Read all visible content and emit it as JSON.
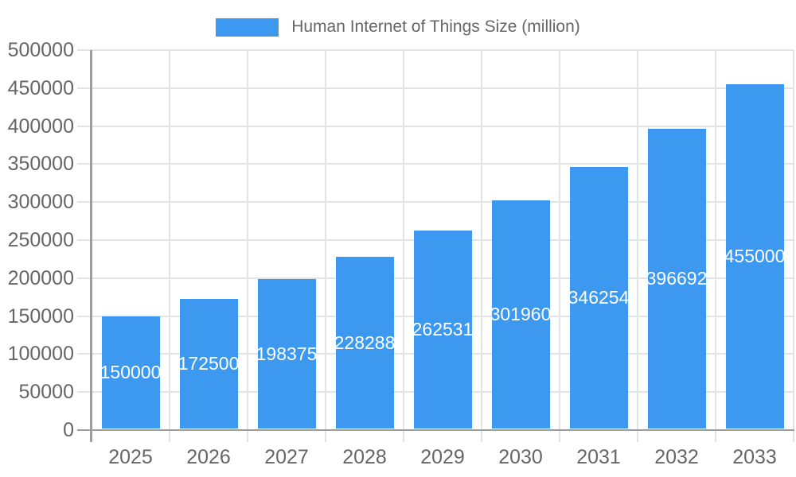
{
  "chart_data": {
    "type": "bar",
    "title": "Human Internet of Things Size (million)",
    "legend": {
      "position": "top-center",
      "entries": [
        "Human Internet of Things Size (million)"
      ]
    },
    "categories": [
      "2025",
      "2026",
      "2027",
      "2028",
      "2029",
      "2030",
      "2031",
      "2032",
      "2033"
    ],
    "series": [
      {
        "name": "Human Internet of Things Size (million)",
        "values": [
          150000,
          172500,
          198375,
          228288,
          262531,
          301960,
          346254,
          396692,
          455000
        ]
      }
    ],
    "bar_labels": [
      "150000",
      "172500",
      "198375",
      "228288",
      "262531",
      "301960",
      "346254",
      "396692",
      "455000"
    ],
    "xlabel": "",
    "ylabel": "",
    "ylim": [
      0,
      500000
    ],
    "ytick_step": 50000,
    "ytick_labels": [
      "0",
      "50000",
      "100000",
      "150000",
      "200000",
      "250000",
      "300000",
      "350000",
      "400000",
      "450000",
      "500000"
    ],
    "grid": true,
    "colors": {
      "bar": "#3d99f0",
      "bar_label_text": "#ffffff",
      "tick_label_text": "#666666",
      "title_text": "#666666",
      "gridline": "#e3e3e3",
      "axis_line": "#9e9e9e",
      "background": "#ffffff"
    }
  }
}
